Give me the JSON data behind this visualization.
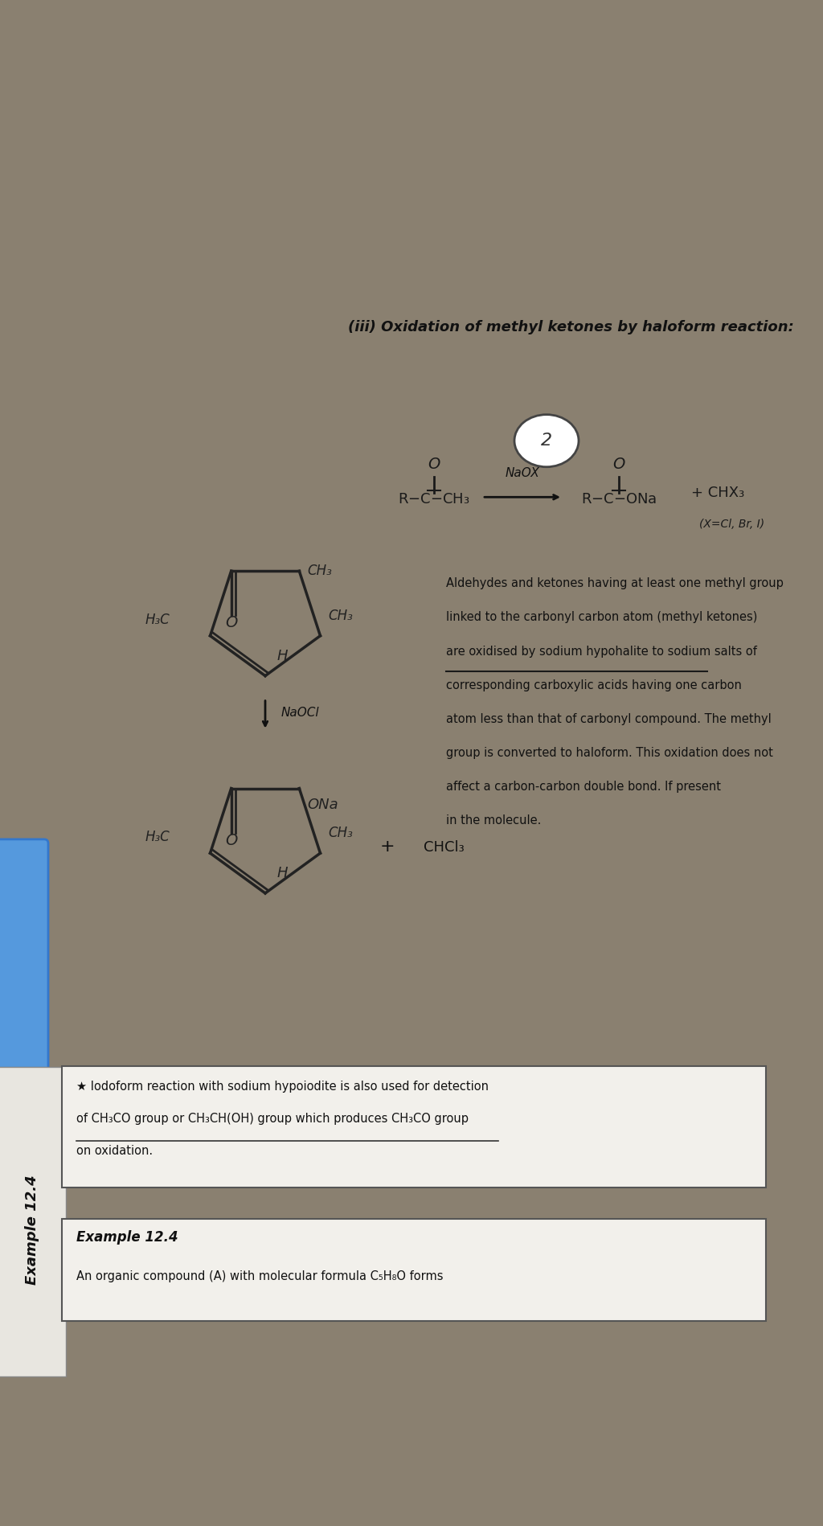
{
  "bg_outer": "#8a8070",
  "bg_paper": "#f0eee8",
  "bg_top_stone": "#a09880",
  "tab_color": "#5599dd",
  "title": "(iii) Oxidation of methyl ketones by haloform reaction:",
  "circle_num": "2",
  "rxn1_left_top": "O",
  "rxn1_left_mid": "R—C—CH₃",
  "rxn1_reagent": "NaOX",
  "rxn1_right_top": "O",
  "rxn1_right_mid": "R—C—ONa",
  "rxn1_plus": "+",
  "rxn1_haloform": "CHX₃",
  "rxn1_xnote": "(X=Cl, Br, I)",
  "rxn2_reagent": "NaOCl",
  "rxn2_plus2": "+",
  "rxn2_haloform2": "CHCl₃",
  "body_text": "Aldehydes and ketones having at least one methyl group\nlinked to the carbonyl carbon atom (methyl ketones)\nare oxidised by sodium hypohalite to sodium salts of\ncorresponding carboxylic acids having one carbon\natom less than that of carbonyl compound. The methyl\ngroup is converted to haloform. This oxidation does not\naffect a carbon-carbon double bond. If present\nin the molecule.",
  "note_line1": "★ Iodoform reaction with sodium hypoiodite is also used for detection",
  "note_line2": "of CH₃CO group or CH₃CH(OH) group which produces CH₃CO group",
  "note_line3": "on oxidation.",
  "example_header": "Example 12.4",
  "example_body": "An organic compound (A) with molecular formula C₅H₈O forms",
  "struct1_H3C": "H₃C",
  "struct1_H": "H",
  "struct1_CH3a": "CH₃",
  "struct1_CH3b": "CH₃",
  "struct2_H3C": "H₃C",
  "struct2_H": "H",
  "struct2_CH3": "CH₃",
  "struct2_ONa": "ONa",
  "underline_color": "#1a1a1a"
}
